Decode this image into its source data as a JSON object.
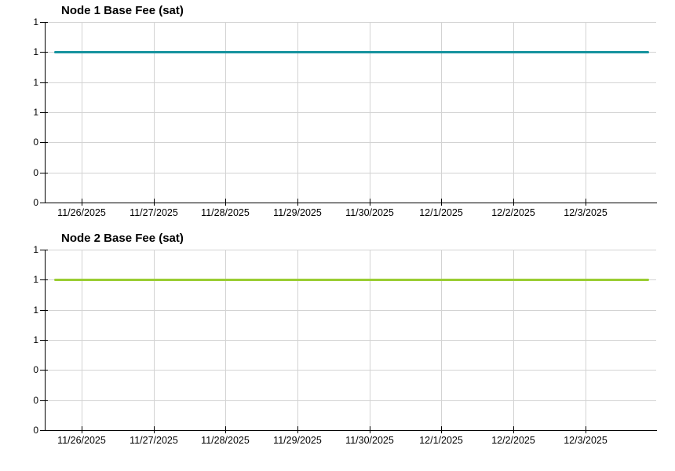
{
  "colors": {
    "background": "#ffffff",
    "gridline": "#d3d3d3",
    "axis": "#000000",
    "text": "#000000",
    "node1_line": "#16939e",
    "node2_line": "#9acd32"
  },
  "charts": [
    {
      "title": "Node 1 Base Fee (sat)",
      "line_color": "#16939e",
      "y_tick_labels": [
        "1",
        "1",
        "1",
        "1",
        "0",
        "0",
        "0"
      ],
      "x_tick_labels": [
        "11/26/2025",
        "11/27/2025",
        "11/28/2025",
        "11/29/2025",
        "11/30/2025",
        "12/1/2025",
        "12/2/2025",
        "12/3/2025"
      ]
    },
    {
      "title": "Node 2 Base Fee (sat)",
      "line_color": "#9acd32",
      "y_tick_labels": [
        "1",
        "1",
        "1",
        "1",
        "0",
        "0",
        "0"
      ],
      "x_tick_labels": [
        "11/26/2025",
        "11/27/2025",
        "11/28/2025",
        "11/29/2025",
        "11/30/2025",
        "12/1/2025",
        "12/2/2025",
        "12/3/2025"
      ]
    }
  ],
  "chart_data": [
    {
      "type": "line",
      "title": "Node 1 Base Fee (sat)",
      "x": [
        "11/26/2025",
        "11/27/2025",
        "11/28/2025",
        "11/29/2025",
        "11/30/2025",
        "12/1/2025",
        "12/2/2025",
        "12/3/2025"
      ],
      "series": [
        {
          "name": "Node 1 Base Fee (sat)",
          "values": [
            1,
            1,
            1,
            1,
            1,
            1,
            1,
            1
          ]
        }
      ],
      "xlabel": "",
      "ylabel": "",
      "ylim": [
        0,
        1.2
      ],
      "y_tick_labels_displayed": [
        "1",
        "1",
        "1",
        "1",
        "0",
        "0",
        "0"
      ],
      "grid": true,
      "legend_position": "none",
      "line_color": "#16939e"
    },
    {
      "type": "line",
      "title": "Node 2 Base Fee (sat)",
      "x": [
        "11/26/2025",
        "11/27/2025",
        "11/28/2025",
        "11/29/2025",
        "11/30/2025",
        "12/1/2025",
        "12/2/2025",
        "12/3/2025"
      ],
      "series": [
        {
          "name": "Node 2 Base Fee (sat)",
          "values": [
            1,
            1,
            1,
            1,
            1,
            1,
            1,
            1
          ]
        }
      ],
      "xlabel": "",
      "ylabel": "",
      "ylim": [
        0,
        1.2
      ],
      "y_tick_labels_displayed": [
        "1",
        "1",
        "1",
        "1",
        "0",
        "0",
        "0"
      ],
      "grid": true,
      "legend_position": "none",
      "line_color": "#9acd32"
    }
  ]
}
